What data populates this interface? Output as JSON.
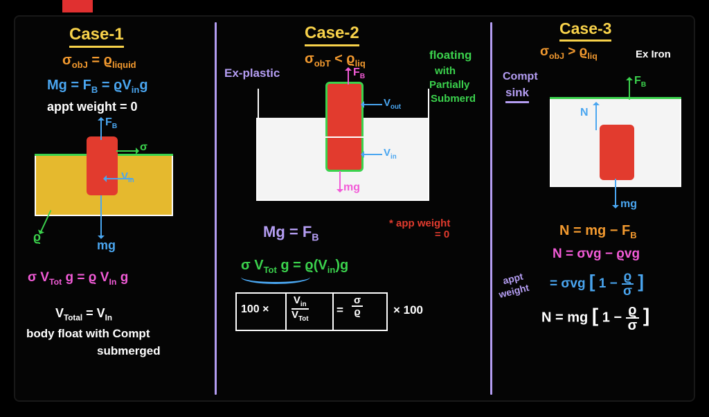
{
  "colors": {
    "yellow": "#f8d24a",
    "orange": "#f39a2f",
    "blue": "#4aa6f0",
    "violet": "#b49df2",
    "red": "#e23b2e",
    "green": "#3bd24d",
    "pink": "#f25bd7",
    "white": "#ffffff",
    "liquid_white": "#f4f4f4",
    "liquid_yellow": "#e5b92e"
  },
  "case1": {
    "title": "Case-1",
    "density": "σ<sub>obJ</sub> = ϱ<sub>liquid</sub>",
    "mg_eq": "Mg = F<sub>B</sub> = ϱV<sub>in</sub>g",
    "appt": "appt weight = 0",
    "fb": "F<sub>B</sub>",
    "sigma": "σ",
    "vin": "V<sub>in</sub>",
    "rho": "ϱ",
    "mg": "mg",
    "eq2": "σ V<sub>Tot</sub> g = ϱ V<sub>In</sub> g",
    "eq3": "V<sub>Total</sub> = V<sub>In</sub>",
    "eq4": "body float with Compt",
    "eq5": "submerged"
  },
  "case2": {
    "title": "Case-2",
    "density": "σ<sub>obT</sub> < ϱ<sub>liq</sub>",
    "ex": "Ex-plastic",
    "floating1": "floating",
    "floating2": "with",
    "floating3": "Partially",
    "floating4": "Submerd",
    "fb": "F<sub>B</sub>",
    "vout": "V<sub>out</sub>",
    "vin": "V<sub>in</sub>",
    "mg": "mg",
    "eq1": "Mg = F<sub>B</sub>",
    "app": "* app weight",
    "app2": "= 0",
    "eq2": "σ V<sub>Tot</sub> g = ϱ(V<sub>in</sub>)g",
    "box_left": "100 ×",
    "box_frac_num": "V<sub>in</sub>",
    "box_frac_den": "V<sub>Tot</sub>",
    "box_mid": "=",
    "box_frac2_num": "σ",
    "box_frac2_den": "ϱ",
    "box_right": "× 100"
  },
  "case3": {
    "title": "Case-3",
    "density": "σ<sub>obJ</sub> > ϱ<sub>liq</sub>",
    "ex": "Ex Iron",
    "compt": "Compt",
    "sink": "sink",
    "fb": "F<sub>B</sub>",
    "n": "N",
    "mg": "mg",
    "eq1": "N = mg − F<sub>B</sub>",
    "eq2": "N = σvg − ϱvg",
    "appt1": "appt",
    "appt2": "weight",
    "eq3a": "= σvg",
    "eq3b_num": "ϱ",
    "eq3b_den": "σ",
    "eq4a": "N = mg",
    "eq4b_num": "ϱ",
    "eq4b_den": "σ"
  }
}
